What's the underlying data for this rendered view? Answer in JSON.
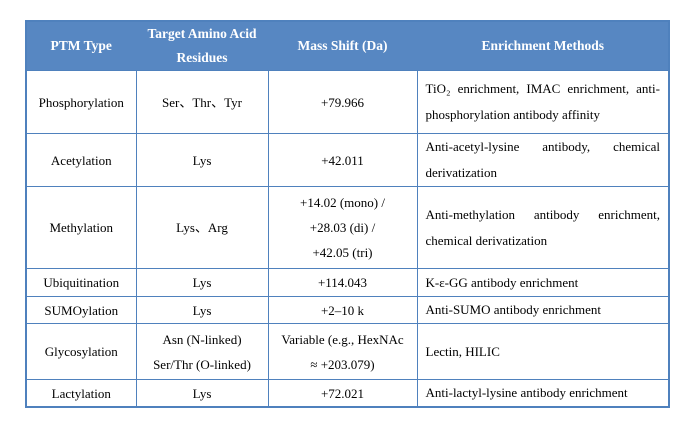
{
  "colors": {
    "page_bg": "#ffffff",
    "header_bg": "#5787c2",
    "header_text": "#ffffff",
    "border": "#4f81bd",
    "body_text": "#000000"
  },
  "table": {
    "columns": [
      {
        "label": "PTM Type"
      },
      {
        "label": "Target Amino Acid Residues"
      },
      {
        "label": "Mass Shift (Da)"
      },
      {
        "label": "Enrichment Methods"
      }
    ],
    "rows": [
      {
        "ptm_type": "Phosphorylation",
        "residues": "Ser、Thr、Tyr",
        "mass_shift": "+79.966",
        "enrichment": "TiO₂ enrichment, IMAC enrichment, anti-phosphorylation antibody affinity"
      },
      {
        "ptm_type": "Acetylation",
        "residues": "Lys",
        "mass_shift": "+42.011",
        "enrichment": "Anti-acetyl-lysine antibody, chemical derivatization"
      },
      {
        "ptm_type": "Methylation",
        "residues": "Lys、Arg",
        "mass_shift": [
          "+14.02 (mono) /",
          "+28.03 (di) /",
          "+42.05 (tri)"
        ],
        "enrichment": "Anti-methylation antibody enrichment, chemical derivatization"
      },
      {
        "ptm_type": "Ubiquitination",
        "residues": "Lys",
        "mass_shift": "+114.043",
        "enrichment": "K-ε-GG antibody enrichment"
      },
      {
        "ptm_type": "SUMOylation",
        "residues": "Lys",
        "mass_shift": "+2–10 k",
        "enrichment": "Anti-SUMO antibody enrichment"
      },
      {
        "ptm_type": "Glycosylation",
        "residues": [
          "Asn (N-linked)",
          "Ser/Thr (O-linked)"
        ],
        "mass_shift": [
          "Variable (e.g., HexNAc",
          "≈ +203.079)"
        ],
        "enrichment": "Lectin, HILIC"
      },
      {
        "ptm_type": "Lactylation",
        "residues": "Lys",
        "mass_shift": "+72.021",
        "enrichment": "Anti-lactyl-lysine antibody enrichment"
      }
    ]
  }
}
